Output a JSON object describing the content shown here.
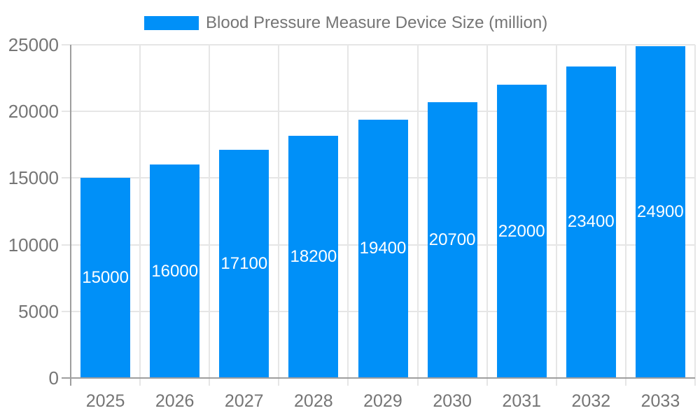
{
  "legend": {
    "label": "Blood Pressure Measure Device Size (million)",
    "swatch_color": "#0090f8"
  },
  "chart_data": {
    "type": "bar",
    "title": "Blood Pressure Measure Device Size (million)",
    "categories": [
      "2025",
      "2026",
      "2027",
      "2028",
      "2029",
      "2030",
      "2031",
      "2032",
      "2033"
    ],
    "values": [
      15000,
      16000,
      17100,
      18200,
      19400,
      20700,
      22000,
      23400,
      24900
    ],
    "series": [
      {
        "name": "Blood Pressure Measure Device Size (million)",
        "values": [
          15000,
          16000,
          17100,
          18200,
          19400,
          20700,
          22000,
          23400,
          24900
        ]
      }
    ],
    "xlabel": "",
    "ylabel": "",
    "ylim": [
      0,
      25000
    ],
    "yticks": [
      0,
      5000,
      10000,
      15000,
      20000,
      25000
    ],
    "grid": true,
    "legend_position": "top",
    "bar_color": "#0090f8",
    "bar_label_color": "#ffffff",
    "axis_text_color": "#757575",
    "grid_color": "#e6e6e6",
    "axis_line_color": "#9e9e9e"
  }
}
